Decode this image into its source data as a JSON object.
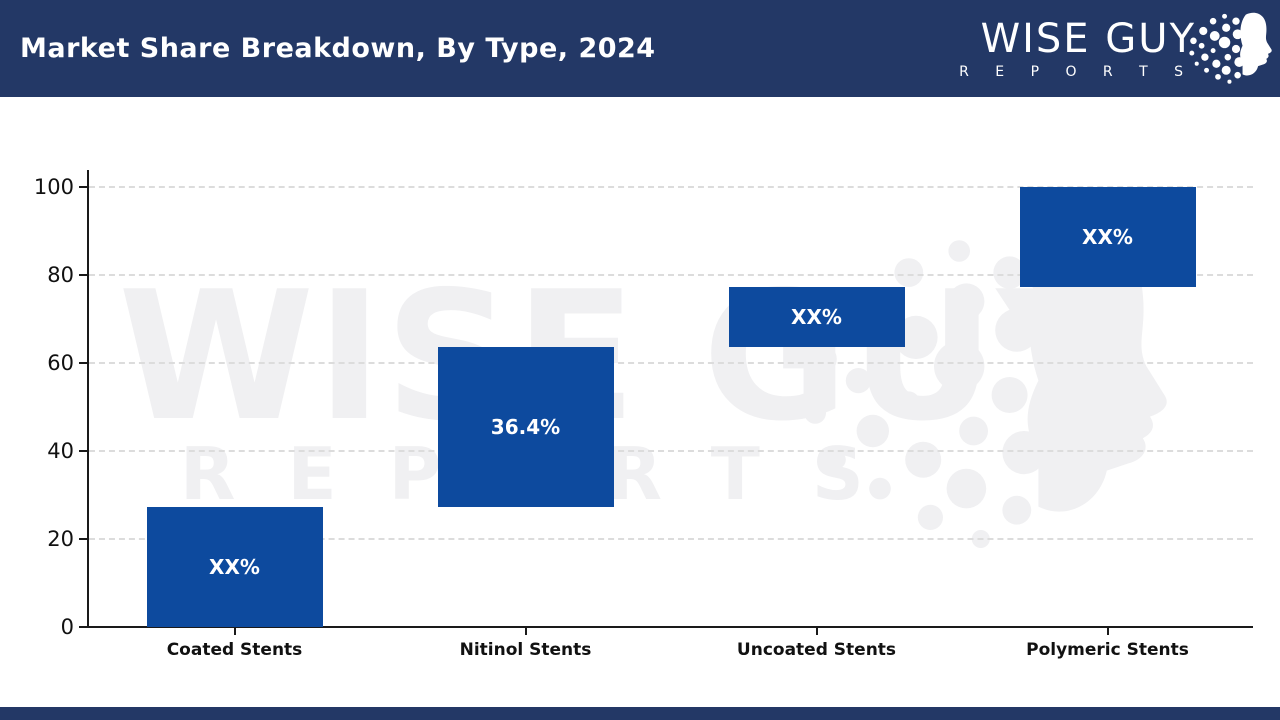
{
  "header": {
    "title": "Market Share Breakdown, By Type, 2024",
    "logo_main": "WISE GUY",
    "logo_sub": "R E P O R T S"
  },
  "watermark": {
    "line1": "WISE GUY",
    "line2": "REPORTS"
  },
  "chart_data": {
    "type": "bar",
    "subtype": "waterfall",
    "title": "Market Share Breakdown, By Type, 2024",
    "xlabel": "",
    "ylabel": "",
    "ylim": [
      0,
      100
    ],
    "yticks": [
      0,
      20,
      40,
      60,
      80,
      100
    ],
    "grid": "dashed horizontal",
    "legend": "none",
    "categories": [
      "Coated Stents",
      "Nitinol Stents",
      "Uncoated Stents",
      "Polymeric Stents"
    ],
    "bars": [
      {
        "category": "Coated Stents",
        "start": 0,
        "end": 27.3,
        "value": 27.3,
        "label": "XX%"
      },
      {
        "category": "Nitinol Stents",
        "start": 27.3,
        "end": 63.7,
        "value": 36.4,
        "label": "36.4%"
      },
      {
        "category": "Uncoated Stents",
        "start": 63.7,
        "end": 77.3,
        "value": 13.6,
        "label": "XX%"
      },
      {
        "category": "Polymeric Stents",
        "start": 77.3,
        "end": 100,
        "value": 22.7,
        "label": "XX%"
      }
    ],
    "bar_color": "#0d4a9e",
    "header_color": "#233866",
    "label_color": "#ffffff"
  }
}
